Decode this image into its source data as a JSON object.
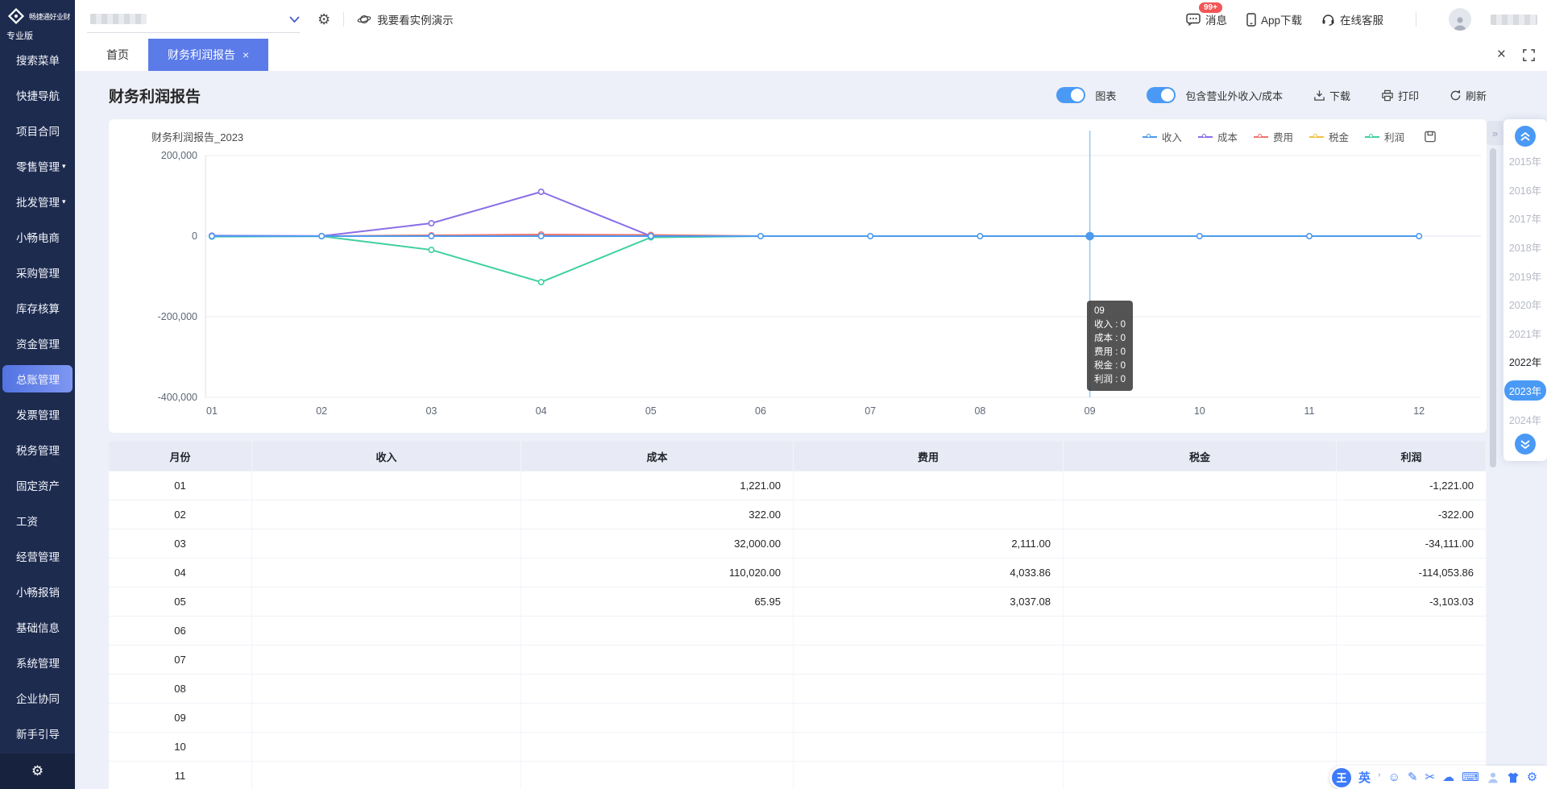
{
  "brand": {
    "name": "畅捷通好业财",
    "edition": "专业版"
  },
  "topbar": {
    "demo_text": "我要看实例演示",
    "messages_label": "消息",
    "messages_badge": "99+",
    "app_download_label": "App下载",
    "support_label": "在线客服"
  },
  "tabs": {
    "home": "首页",
    "active_tab": "财务利润报告"
  },
  "sidebar": {
    "items": [
      {
        "label": "搜索菜单"
      },
      {
        "label": "快捷导航"
      },
      {
        "label": "项目合同"
      },
      {
        "label": "零售管理",
        "dropdown": true
      },
      {
        "label": "批发管理",
        "dropdown": true
      },
      {
        "label": "小畅电商"
      },
      {
        "label": "采购管理"
      },
      {
        "label": "库存核算"
      },
      {
        "label": "资金管理"
      },
      {
        "label": "总账管理",
        "active": true
      },
      {
        "label": "发票管理"
      },
      {
        "label": "税务管理"
      },
      {
        "label": "固定资产"
      },
      {
        "label": "工资"
      },
      {
        "label": "经营管理"
      },
      {
        "label": "小畅报销"
      },
      {
        "label": "基础信息"
      },
      {
        "label": "系统管理"
      },
      {
        "label": "企业协同"
      },
      {
        "label": "新手引导"
      }
    ]
  },
  "page": {
    "title": "财务利润报告",
    "toggle_chart": "图表",
    "toggle_nonop": "包含营业外收入/成本",
    "action_download": "下载",
    "action_print": "打印",
    "action_refresh": "刷新"
  },
  "chart_data": {
    "type": "line",
    "title": "财务利润报告_2023",
    "x": [
      "01",
      "02",
      "03",
      "04",
      "05",
      "06",
      "07",
      "08",
      "09",
      "10",
      "11",
      "12"
    ],
    "ylim": [
      -400000,
      200000
    ],
    "yticks": [
      200000,
      0,
      -200000,
      -400000
    ],
    "ytick_labels": [
      "200,000",
      "0",
      "-200,000",
      "-400,000"
    ],
    "grid": true,
    "legend_position": "top-right",
    "hover_index": 8,
    "series": [
      {
        "name": "收入",
        "color": "#4D9BEE",
        "values": [
          0,
          0,
          0,
          0,
          0,
          0,
          0,
          0,
          0,
          0,
          0,
          0
        ]
      },
      {
        "name": "成本",
        "color": "#8A6FE8",
        "values": [
          1221,
          322,
          32000,
          110020,
          65.95,
          0,
          0,
          0,
          0,
          0,
          0,
          0
        ]
      },
      {
        "name": "费用",
        "color": "#F1736F",
        "values": [
          0,
          0,
          2111,
          4033.86,
          3037.08,
          0,
          0,
          0,
          0,
          0,
          0,
          0
        ]
      },
      {
        "name": "税金",
        "color": "#F3C144",
        "values": [
          0,
          0,
          0,
          0,
          0,
          0,
          0,
          0,
          0,
          0,
          0,
          0
        ]
      },
      {
        "name": "利润",
        "color": "#3FD0A0",
        "values": [
          -1221,
          -322,
          -34111,
          -114053.86,
          -3103.03,
          0,
          0,
          0,
          0,
          0,
          0,
          0
        ]
      }
    ]
  },
  "chart_tooltip": {
    "title": "09",
    "rows": [
      {
        "label": "收入",
        "value": "0"
      },
      {
        "label": "成本",
        "value": "0"
      },
      {
        "label": "费用",
        "value": "0"
      },
      {
        "label": "税金",
        "value": "0"
      },
      {
        "label": "利润",
        "value": "0"
      }
    ]
  },
  "year_panel": {
    "years": [
      "2015年",
      "2016年",
      "2017年",
      "2018年",
      "2019年",
      "2020年",
      "2021年",
      "2022年",
      "2023年",
      "2024年"
    ],
    "selected": "2023年",
    "hovered": "2022年"
  },
  "table": {
    "columns": [
      "月份",
      "收入",
      "成本",
      "费用",
      "税金",
      "利润"
    ],
    "rows": [
      [
        "01",
        "",
        "1,221.00",
        "",
        "",
        "-1,221.00"
      ],
      [
        "02",
        "",
        "322.00",
        "",
        "",
        "-322.00"
      ],
      [
        "03",
        "",
        "32,000.00",
        "2,111.00",
        "",
        "-34,111.00"
      ],
      [
        "04",
        "",
        "110,020.00",
        "4,033.86",
        "",
        "-114,053.86"
      ],
      [
        "05",
        "",
        "65.95",
        "3,037.08",
        "",
        "-3,103.03"
      ],
      [
        "06",
        "",
        "",
        "",
        "",
        ""
      ],
      [
        "07",
        "",
        "",
        "",
        "",
        ""
      ],
      [
        "08",
        "",
        "",
        "",
        "",
        ""
      ],
      [
        "09",
        "",
        "",
        "",
        "",
        ""
      ],
      [
        "10",
        "",
        "",
        "",
        "",
        ""
      ],
      [
        "11",
        "",
        "",
        "",
        "",
        ""
      ]
    ]
  },
  "ime_bar": {
    "icons": [
      {
        "name": "wang-ime-icon",
        "glyph": "王",
        "style": "badge"
      },
      {
        "name": "english-mode-icon",
        "glyph": "英",
        "style": "text"
      },
      {
        "name": "punctuation-icon",
        "glyph": "’",
        "style": "small"
      },
      {
        "name": "emoji-icon",
        "glyph": "☺"
      },
      {
        "name": "pen-icon",
        "glyph": "✎"
      },
      {
        "name": "scissors-icon",
        "glyph": "✂"
      },
      {
        "name": "cloud-icon",
        "glyph": "☁"
      },
      {
        "name": "keyboard-icon",
        "glyph": "⌨"
      },
      {
        "name": "user-icon",
        "shape": "person"
      },
      {
        "name": "skin-icon",
        "shape": "shirt"
      },
      {
        "name": "settings-icon",
        "glyph": "⚙"
      }
    ]
  }
}
